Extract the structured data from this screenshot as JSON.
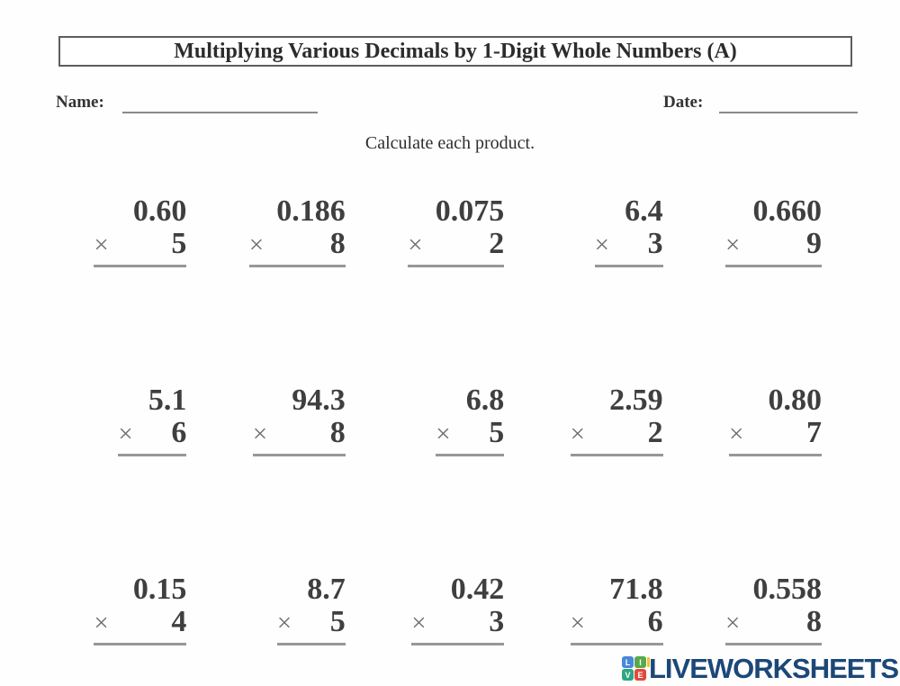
{
  "worksheet": {
    "title": "Multiplying Various Decimals by 1-Digit Whole Numbers (A)",
    "name_label": "Name:",
    "date_label": "Date:",
    "instruction": "Calculate each product.",
    "multiply_sign": "×",
    "rows": [
      [
        {
          "operand": "0.60",
          "multiplier": "5"
        },
        {
          "operand": "0.186",
          "multiplier": "8"
        },
        {
          "operand": "0.075",
          "multiplier": "2"
        },
        {
          "operand": "6.4",
          "multiplier": "3"
        },
        {
          "operand": "0.660",
          "multiplier": "9"
        }
      ],
      [
        {
          "operand": "5.1",
          "multiplier": "6"
        },
        {
          "operand": "94.3",
          "multiplier": "8"
        },
        {
          "operand": "6.8",
          "multiplier": "5"
        },
        {
          "operand": "2.59",
          "multiplier": "2"
        },
        {
          "operand": "0.80",
          "multiplier": "7"
        }
      ],
      [
        {
          "operand": "0.15",
          "multiplier": "4"
        },
        {
          "operand": "8.7",
          "multiplier": "5"
        },
        {
          "operand": "0.42",
          "multiplier": "3"
        },
        {
          "operand": "71.8",
          "multiplier": "6"
        },
        {
          "operand": "0.558",
          "multiplier": "8"
        }
      ]
    ]
  },
  "branding": {
    "logo_text": "LIVEWORKSHEETS",
    "logo_text_color": "#1b4878",
    "logo_accent_color": "#f1c232",
    "logo_tiles": [
      {
        "letter": "L",
        "color": "#4a87d8"
      },
      {
        "letter": "I",
        "color": "#55a94c"
      },
      {
        "letter": "V",
        "color": "#2ea684"
      },
      {
        "letter": "E",
        "color": "#e04b3b"
      }
    ]
  }
}
